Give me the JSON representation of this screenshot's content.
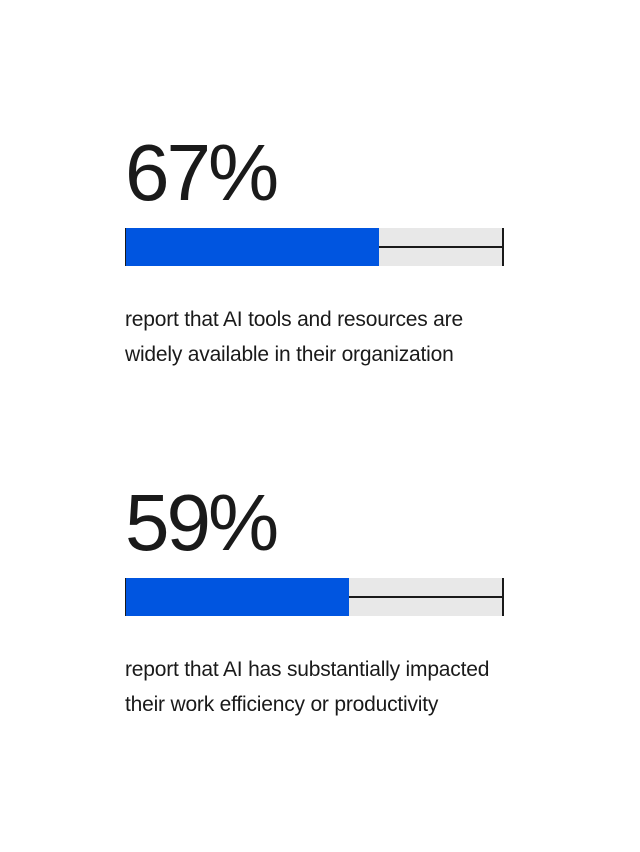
{
  "stats": [
    {
      "value_label": "67%",
      "percent": 67,
      "description": "report that AI tools and resources are widely available in their organization"
    },
    {
      "value_label": "59%",
      "percent": 59,
      "description": "report that AI has substantially impacted their work efficiency or productivity"
    }
  ],
  "colors": {
    "fill": "#0055e0",
    "track": "#e8e8e8",
    "text": "#1a1a1a"
  }
}
